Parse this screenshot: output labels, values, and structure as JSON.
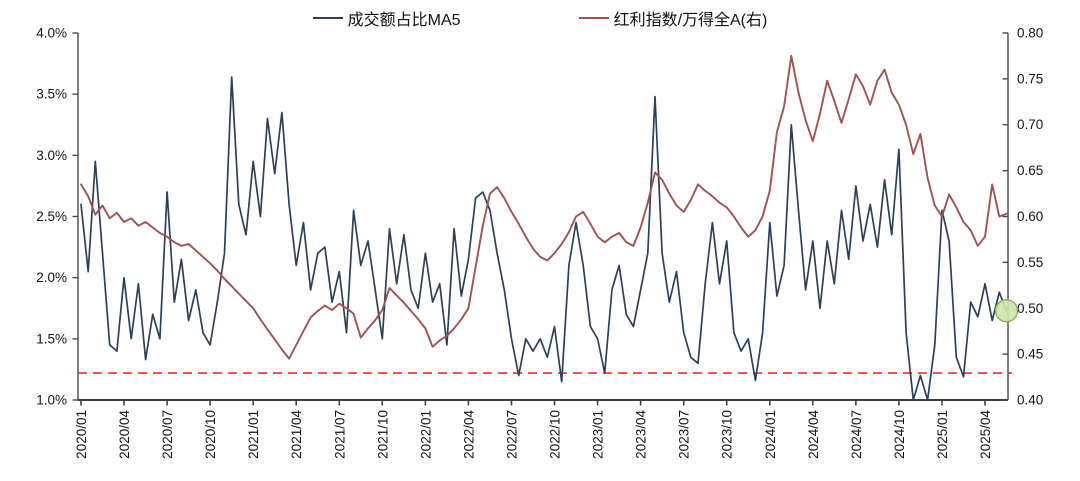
{
  "chart_data": {
    "type": "line",
    "title": "",
    "legend": [
      {
        "label": "成交额占比MA5",
        "color": "#2e4058",
        "axis": "left"
      },
      {
        "label": "红利指数/万得全A(右)",
        "color": "#9d5254",
        "axis": "right"
      }
    ],
    "x_tick_labels": [
      "2020/01",
      "2020/04",
      "2020/07",
      "2020/10",
      "2021/01",
      "2021/04",
      "2021/07",
      "2021/10",
      "2022/01",
      "2022/04",
      "2022/07",
      "2022/10",
      "2023/01",
      "2023/04",
      "2023/07",
      "2023/10",
      "2024/01",
      "2024/04",
      "2024/07",
      "2024/10",
      "2025/01",
      "2025/04"
    ],
    "left_axis": {
      "ticks": [
        "4.0%",
        "3.5%",
        "3.0%",
        "2.5%",
        "2.0%",
        "1.5%",
        "1.0%"
      ],
      "min": 1.0,
      "max": 4.0,
      "step": 0.5
    },
    "right_axis": {
      "ticks": [
        "0.80",
        "0.75",
        "0.70",
        "0.65",
        "0.60",
        "0.55",
        "0.50",
        "0.45",
        "0.40"
      ],
      "min": 0.4,
      "max": 0.8,
      "step": 0.05
    },
    "reference_line": {
      "value_left_axis": 1.22,
      "color": "#f72c2c",
      "style": "dashed"
    },
    "end_marker": {
      "series": "成交额占比MA5",
      "value_left_axis": 1.73,
      "fill": "#cfe4ad",
      "stroke": "#8fab68"
    },
    "sampling": {
      "start": "2020/01",
      "interval_months": 0.5,
      "points_per_series": 130
    },
    "series": [
      {
        "name": "成交额占比MA5",
        "axis": "left",
        "color": "#2e4058",
        "values": [
          2.6,
          2.05,
          2.95,
          2.2,
          1.45,
          1.4,
          2.0,
          1.5,
          1.95,
          1.33,
          1.7,
          1.5,
          2.7,
          1.8,
          2.15,
          1.65,
          1.9,
          1.55,
          1.45,
          1.8,
          2.2,
          3.64,
          2.6,
          2.35,
          2.95,
          2.5,
          3.3,
          2.85,
          3.35,
          2.6,
          2.1,
          2.45,
          1.9,
          2.2,
          2.25,
          1.8,
          2.05,
          1.55,
          2.55,
          2.1,
          2.3,
          1.9,
          1.5,
          2.4,
          1.95,
          2.35,
          1.9,
          1.75,
          2.2,
          1.8,
          1.95,
          1.45,
          2.4,
          1.85,
          2.15,
          2.65,
          2.7,
          2.55,
          2.2,
          1.9,
          1.5,
          1.2,
          1.5,
          1.4,
          1.5,
          1.35,
          1.6,
          1.15,
          2.1,
          2.45,
          2.1,
          1.6,
          1.5,
          1.22,
          1.9,
          2.1,
          1.7,
          1.6,
          1.9,
          2.2,
          3.48,
          2.2,
          1.8,
          2.05,
          1.55,
          1.35,
          1.3,
          1.95,
          2.45,
          1.95,
          2.3,
          1.55,
          1.4,
          1.5,
          1.16,
          1.55,
          2.45,
          1.85,
          2.1,
          3.25,
          2.55,
          1.9,
          2.3,
          1.75,
          2.3,
          1.95,
          2.55,
          2.15,
          2.75,
          2.3,
          2.6,
          2.25,
          2.8,
          2.35,
          3.05,
          1.55,
          1.0,
          1.2,
          1.0,
          1.45,
          2.55,
          2.3,
          1.35,
          1.19,
          1.8,
          1.68,
          1.95,
          1.65,
          1.88,
          1.73
        ]
      },
      {
        "name": "红利指数/万得全A(右)",
        "axis": "right",
        "color": "#9d5254",
        "values": [
          0.635,
          0.622,
          0.602,
          0.612,
          0.598,
          0.604,
          0.594,
          0.598,
          0.59,
          0.594,
          0.588,
          0.582,
          0.578,
          0.572,
          0.568,
          0.57,
          0.563,
          0.556,
          0.549,
          0.541,
          0.532,
          0.524,
          0.516,
          0.508,
          0.5,
          0.488,
          0.477,
          0.466,
          0.455,
          0.445,
          0.46,
          0.475,
          0.49,
          0.497,
          0.503,
          0.498,
          0.505,
          0.5,
          0.494,
          0.468,
          0.478,
          0.487,
          0.498,
          0.522,
          0.514,
          0.506,
          0.497,
          0.488,
          0.478,
          0.458,
          0.465,
          0.47,
          0.478,
          0.488,
          0.5,
          0.545,
          0.59,
          0.625,
          0.632,
          0.62,
          0.605,
          0.592,
          0.578,
          0.565,
          0.556,
          0.552,
          0.56,
          0.57,
          0.583,
          0.6,
          0.605,
          0.592,
          0.578,
          0.572,
          0.578,
          0.582,
          0.572,
          0.568,
          0.588,
          0.615,
          0.648,
          0.64,
          0.625,
          0.612,
          0.605,
          0.618,
          0.635,
          0.628,
          0.622,
          0.615,
          0.61,
          0.6,
          0.588,
          0.578,
          0.585,
          0.6,
          0.628,
          0.692,
          0.72,
          0.775,
          0.735,
          0.705,
          0.682,
          0.712,
          0.748,
          0.726,
          0.702,
          0.728,
          0.755,
          0.742,
          0.722,
          0.748,
          0.76,
          0.735,
          0.722,
          0.7,
          0.668,
          0.69,
          0.642,
          0.612,
          0.6,
          0.624,
          0.61,
          0.594,
          0.585,
          0.568,
          0.578,
          0.635,
          0.6,
          0.603
        ]
      }
    ]
  }
}
